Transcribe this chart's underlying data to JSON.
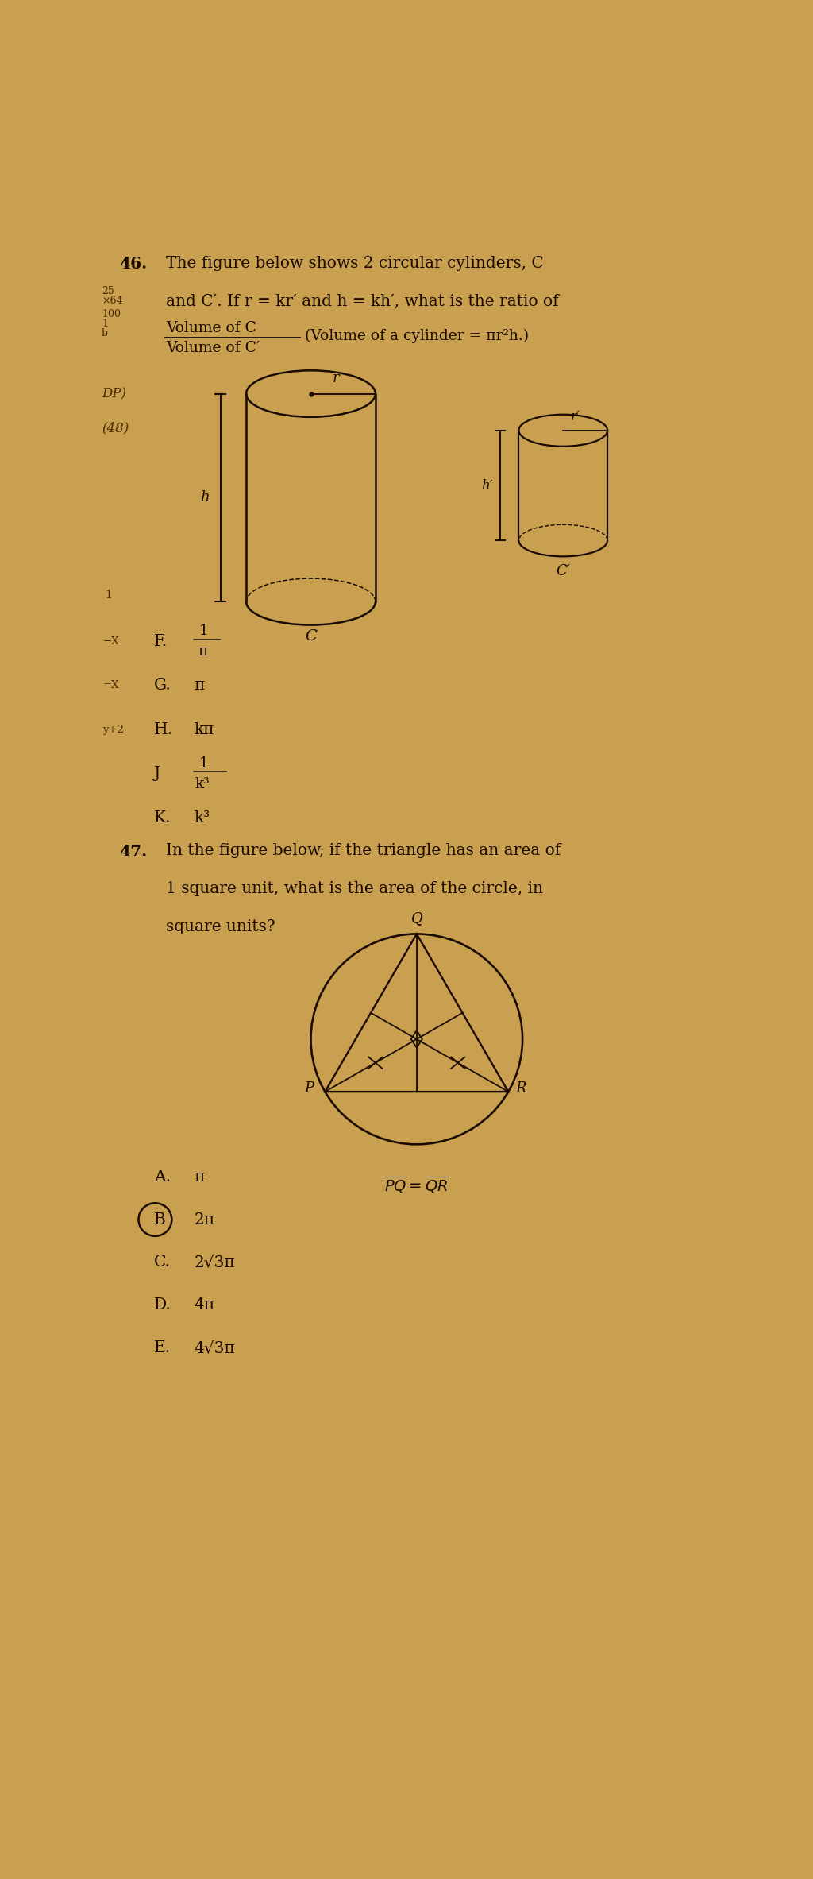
{
  "background_color": "#C8A050",
  "page_width": 10.24,
  "page_height": 23.65,
  "text_color": "#1A0A00",
  "q46_number": "46.",
  "q46_line1": "The figure below shows 2 circular cylinders, C",
  "q46_line2": "and C′. If r = kr′ and h = kh′, what is the ratio of",
  "q46_line3_frac_num": "Volume of C",
  "q46_line3_frac_den": "Volume of C′",
  "q46_line3_rest": "(Volume of a cylinder = πr²h.)",
  "q46_options": [
    [
      "F.",
      "1/π"
    ],
    [
      "G.",
      "π"
    ],
    [
      "H.",
      "kπ"
    ],
    [
      "J",
      "1/k³"
    ],
    [
      "K.",
      "k³"
    ]
  ],
  "q46_option_annotations": [
    "−X",
    "=X",
    "y+2"
  ],
  "q47_number": "47.",
  "q47_line1": "In the figure below, if the triangle has an area of",
  "q47_line2": "1 square unit, what is the area of the circle, in",
  "q47_line3": "square units?",
  "q47_options": [
    [
      "A.",
      "π"
    ],
    [
      "B",
      "2π"
    ],
    [
      "C.",
      "2√3π"
    ],
    [
      "D.",
      "4π"
    ],
    [
      "E.",
      "4√3π"
    ]
  ],
  "q47_answer_circled": "B",
  "ann_left_top": [
    "25",
    "×64",
    "100",
    "1",
    "b"
  ],
  "ann_left_mid": [
    "DP)",
    "(48)"
  ],
  "ann_left_bot": [
    "1"
  ]
}
